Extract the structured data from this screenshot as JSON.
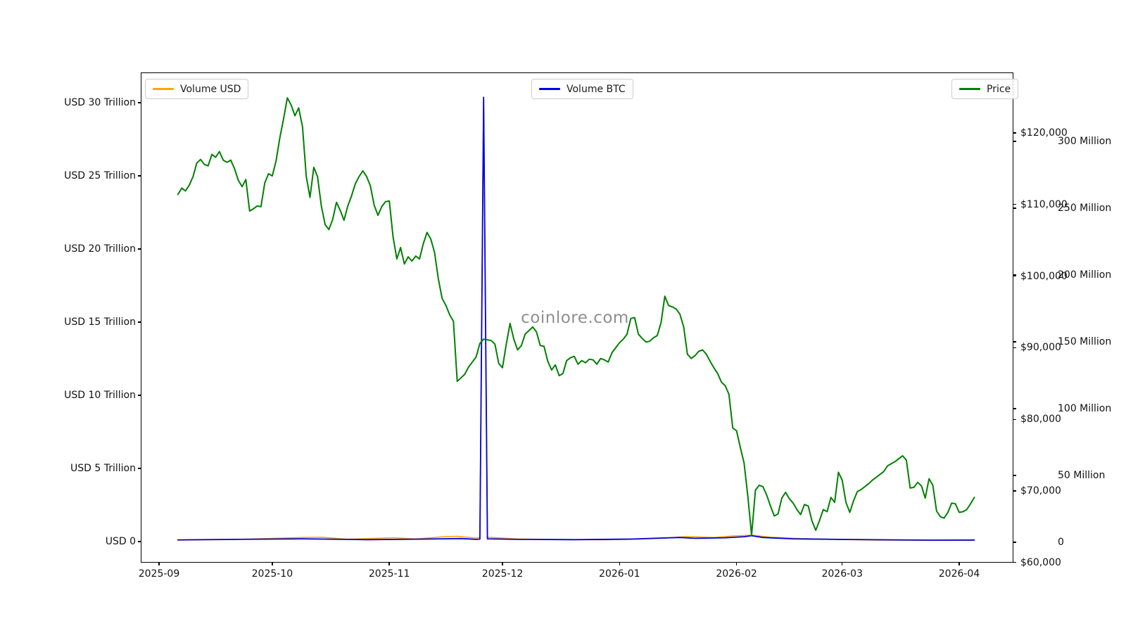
{
  "watermark": "coinlore.com",
  "legends": [
    {
      "label": "Volume USD",
      "color": "#FFA500"
    },
    {
      "label": "Volume BTC",
      "color": "#0000DD"
    },
    {
      "label": "Price",
      "color": "#008000"
    }
  ],
  "chart_data": {
    "type": "line",
    "title": "",
    "x_unit": "days since 2025-09-01",
    "xlim": [
      -4.66,
      226.17
    ],
    "x_ticks": {
      "days": [
        0,
        30,
        61,
        91,
        122,
        153,
        181,
        212
      ],
      "labels": [
        "2025-09",
        "2025-10",
        "2025-11",
        "2025-12",
        "2026-01",
        "2026-02",
        "2026-03",
        "2026-04"
      ]
    },
    "axes": {
      "volume_usd": {
        "side": "left",
        "unit": "trillion USD",
        "lim": [
          -1.394,
          32.02
        ],
        "tick_values": [
          0,
          5,
          10,
          15,
          20,
          25,
          30
        ],
        "tick_labels": [
          "USD 0",
          "USD 5 Trillion",
          "USD 10 Trillion",
          "USD 15 Trillion",
          "USD 20 Trillion",
          "USD 25 Trillion",
          "USD 30 Trillion"
        ]
      },
      "price": {
        "side": "right",
        "unit": "USD",
        "lim": [
          60079,
          128350
        ],
        "tick_values": [
          60000,
          70000,
          80000,
          90000,
          100000,
          110000,
          120000
        ],
        "tick_labels": [
          "$60,000",
          "$70,000",
          "$80,000",
          "$90,000",
          "$100,000",
          "$110,000",
          "$120,000"
        ]
      },
      "volume_btc": {
        "side": "right-outer",
        "unit": "million BTC",
        "lim": [
          -14.7,
          351.05
        ],
        "tick_values": [
          0,
          50,
          100,
          150,
          200,
          250,
          300
        ],
        "tick_labels": [
          "0",
          "50 Million",
          "100 Million",
          "150 Million",
          "200 Million",
          "250 Million",
          "300 Million"
        ]
      }
    },
    "series": [
      {
        "name": "Volume USD",
        "color": "#FFA500",
        "axis": "volume_usd",
        "width": 1.6,
        "points": [
          [
            5,
            0.1
          ],
          [
            20,
            0.14
          ],
          [
            38,
            0.28
          ],
          [
            43,
            0.3
          ],
          [
            50,
            0.16
          ],
          [
            57,
            0.22
          ],
          [
            62,
            0.26
          ],
          [
            68,
            0.18
          ],
          [
            75,
            0.32
          ],
          [
            79,
            0.36
          ],
          [
            84,
            0.24
          ],
          [
            85,
            0.3
          ],
          [
            86,
            30.2
          ],
          [
            87,
            0.3
          ],
          [
            95,
            0.18
          ],
          [
            105,
            0.14
          ],
          [
            118,
            0.12
          ],
          [
            125,
            0.16
          ],
          [
            133,
            0.22
          ],
          [
            140,
            0.34
          ],
          [
            147,
            0.28
          ],
          [
            152,
            0.38
          ],
          [
            157,
            0.44
          ],
          [
            162,
            0.3
          ],
          [
            170,
            0.2
          ],
          [
            180,
            0.14
          ],
          [
            190,
            0.1
          ],
          [
            200,
            0.09
          ],
          [
            216,
            0.1
          ]
        ]
      },
      {
        "name": "Volume BTC",
        "color": "#0000DD",
        "axis": "volume_btc",
        "width": 1.8,
        "points": [
          [
            5,
            1.8
          ],
          [
            20,
            2.2
          ],
          [
            38,
            2.6
          ],
          [
            55,
            2.0
          ],
          [
            70,
            2.4
          ],
          [
            80,
            2.8
          ],
          [
            84,
            2.2
          ],
          [
            85,
            2.4
          ],
          [
            86,
            333
          ],
          [
            87,
            2.6
          ],
          [
            95,
            2.2
          ],
          [
            110,
            2.0
          ],
          [
            125,
            2.4
          ],
          [
            133,
            3.2
          ],
          [
            138,
            3.6
          ],
          [
            142,
            3.0
          ],
          [
            150,
            3.4
          ],
          [
            155,
            4.2
          ],
          [
            157,
            5.0
          ],
          [
            160,
            3.6
          ],
          [
            168,
            2.6
          ],
          [
            180,
            2.2
          ],
          [
            195,
            1.8
          ],
          [
            205,
            1.6
          ],
          [
            216,
            1.7
          ]
        ]
      },
      {
        "name": "Price",
        "color": "#008000",
        "axis": "price",
        "width": 2.0,
        "points": [
          [
            5,
            111400
          ],
          [
            6,
            112300
          ],
          [
            7,
            111900
          ],
          [
            8,
            112700
          ],
          [
            9,
            113900
          ],
          [
            10,
            115800
          ],
          [
            11,
            116300
          ],
          [
            12,
            115600
          ],
          [
            13,
            115400
          ],
          [
            14,
            117000
          ],
          [
            15,
            116600
          ],
          [
            16,
            117400
          ],
          [
            17,
            116200
          ],
          [
            18,
            115900
          ],
          [
            19,
            116200
          ],
          [
            20,
            115000
          ],
          [
            21,
            113400
          ],
          [
            22,
            112500
          ],
          [
            23,
            113500
          ],
          [
            24,
            109100
          ],
          [
            25,
            109400
          ],
          [
            26,
            109800
          ],
          [
            27,
            109700
          ],
          [
            28,
            113000
          ],
          [
            29,
            114300
          ],
          [
            30,
            114000
          ],
          [
            31,
            116100
          ],
          [
            32,
            119300
          ],
          [
            33,
            122000
          ],
          [
            34,
            124900
          ],
          [
            35,
            123900
          ],
          [
            36,
            122400
          ],
          [
            37,
            123500
          ],
          [
            38,
            120900
          ],
          [
            39,
            113900
          ],
          [
            40,
            111000
          ],
          [
            41,
            115200
          ],
          [
            42,
            113900
          ],
          [
            43,
            109800
          ],
          [
            44,
            107200
          ],
          [
            45,
            106500
          ],
          [
            46,
            107900
          ],
          [
            47,
            110300
          ],
          [
            48,
            109200
          ],
          [
            49,
            107800
          ],
          [
            50,
            109800
          ],
          [
            51,
            111200
          ],
          [
            52,
            112900
          ],
          [
            53,
            113900
          ],
          [
            54,
            114700
          ],
          [
            55,
            113900
          ],
          [
            56,
            112600
          ],
          [
            57,
            109900
          ],
          [
            58,
            108500
          ],
          [
            59,
            109700
          ],
          [
            60,
            110400
          ],
          [
            61,
            110500
          ],
          [
            62,
            105500
          ],
          [
            63,
            102400
          ],
          [
            64,
            104000
          ],
          [
            65,
            101700
          ],
          [
            66,
            102700
          ],
          [
            67,
            102100
          ],
          [
            68,
            102800
          ],
          [
            69,
            102400
          ],
          [
            70,
            104500
          ],
          [
            71,
            106100
          ],
          [
            72,
            105200
          ],
          [
            73,
            103300
          ],
          [
            74,
            99600
          ],
          [
            75,
            96900
          ],
          [
            76,
            95900
          ],
          [
            77,
            94600
          ],
          [
            78,
            93700
          ],
          [
            79,
            85300
          ],
          [
            80,
            85800
          ],
          [
            81,
            86300
          ],
          [
            82,
            87300
          ],
          [
            83,
            88000
          ],
          [
            84,
            88700
          ],
          [
            85,
            90600
          ],
          [
            86,
            91200
          ],
          [
            87,
            91100
          ],
          [
            88,
            91000
          ],
          [
            89,
            90500
          ],
          [
            90,
            87800
          ],
          [
            91,
            87200
          ],
          [
            92,
            90500
          ],
          [
            93,
            93400
          ],
          [
            94,
            91200
          ],
          [
            95,
            89700
          ],
          [
            96,
            90300
          ],
          [
            97,
            91900
          ],
          [
            98,
            92400
          ],
          [
            99,
            92900
          ],
          [
            100,
            92200
          ],
          [
            101,
            90300
          ],
          [
            102,
            90200
          ],
          [
            103,
            88100
          ],
          [
            104,
            86900
          ],
          [
            105,
            87600
          ],
          [
            106,
            86100
          ],
          [
            107,
            86400
          ],
          [
            108,
            88200
          ],
          [
            109,
            88600
          ],
          [
            110,
            88800
          ],
          [
            111,
            87700
          ],
          [
            112,
            88200
          ],
          [
            113,
            87900
          ],
          [
            114,
            88400
          ],
          [
            115,
            88300
          ],
          [
            116,
            87700
          ],
          [
            117,
            88500
          ],
          [
            118,
            88300
          ],
          [
            119,
            88000
          ],
          [
            120,
            89300
          ],
          [
            121,
            90000
          ],
          [
            122,
            90700
          ],
          [
            123,
            91200
          ],
          [
            124,
            91900
          ],
          [
            125,
            94100
          ],
          [
            126,
            94200
          ],
          [
            127,
            91900
          ],
          [
            128,
            91300
          ],
          [
            129,
            90800
          ],
          [
            130,
            90900
          ],
          [
            131,
            91400
          ],
          [
            132,
            91700
          ],
          [
            133,
            93500
          ],
          [
            134,
            97200
          ],
          [
            135,
            95900
          ],
          [
            136,
            95700
          ],
          [
            137,
            95400
          ],
          [
            138,
            94700
          ],
          [
            139,
            92900
          ],
          [
            140,
            89100
          ],
          [
            141,
            88500
          ],
          [
            142,
            88900
          ],
          [
            143,
            89500
          ],
          [
            144,
            89700
          ],
          [
            145,
            89100
          ],
          [
            146,
            88100
          ],
          [
            147,
            87200
          ],
          [
            148,
            86400
          ],
          [
            149,
            85200
          ],
          [
            150,
            84700
          ],
          [
            151,
            83500
          ],
          [
            152,
            78800
          ],
          [
            153,
            78400
          ],
          [
            154,
            76100
          ],
          [
            155,
            73900
          ],
          [
            156,
            69200
          ],
          [
            157,
            63800
          ],
          [
            158,
            70100
          ],
          [
            159,
            70800
          ],
          [
            160,
            70600
          ],
          [
            161,
            69400
          ],
          [
            162,
            67900
          ],
          [
            163,
            66500
          ],
          [
            164,
            66800
          ],
          [
            165,
            69000
          ],
          [
            166,
            69800
          ],
          [
            167,
            68900
          ],
          [
            168,
            68300
          ],
          [
            169,
            67400
          ],
          [
            170,
            66700
          ],
          [
            171,
            68100
          ],
          [
            172,
            67900
          ],
          [
            173,
            65800
          ],
          [
            174,
            64500
          ],
          [
            175,
            65900
          ],
          [
            176,
            67400
          ],
          [
            177,
            67100
          ],
          [
            178,
            69100
          ],
          [
            179,
            68400
          ],
          [
            180,
            72600
          ],
          [
            181,
            71500
          ],
          [
            182,
            68400
          ],
          [
            183,
            67000
          ],
          [
            184,
            68600
          ],
          [
            185,
            69900
          ],
          [
            186,
            70200
          ],
          [
            187,
            70600
          ],
          [
            188,
            71000
          ],
          [
            189,
            71500
          ],
          [
            190,
            71900
          ],
          [
            191,
            72300
          ],
          [
            192,
            72700
          ],
          [
            193,
            73500
          ],
          [
            194,
            73800
          ],
          [
            195,
            74100
          ],
          [
            196,
            74500
          ],
          [
            197,
            74900
          ],
          [
            198,
            74300
          ],
          [
            199,
            70400
          ],
          [
            200,
            70500
          ],
          [
            201,
            71200
          ],
          [
            202,
            70700
          ],
          [
            203,
            69000
          ],
          [
            204,
            71700
          ],
          [
            205,
            70800
          ],
          [
            206,
            67200
          ],
          [
            207,
            66400
          ],
          [
            208,
            66200
          ],
          [
            209,
            67000
          ],
          [
            210,
            68300
          ],
          [
            211,
            68200
          ],
          [
            212,
            67000
          ],
          [
            213,
            67100
          ],
          [
            214,
            67400
          ],
          [
            215,
            68200
          ],
          [
            216,
            69100
          ]
        ]
      }
    ]
  }
}
